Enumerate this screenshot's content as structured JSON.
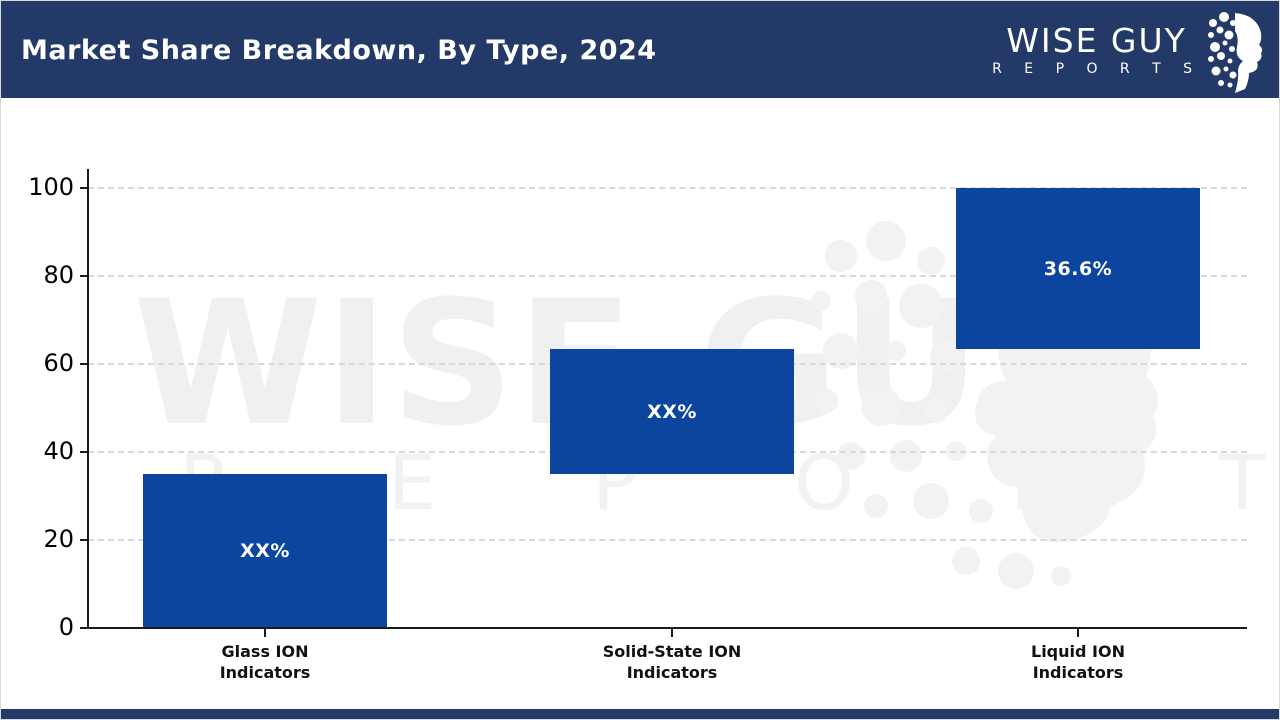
{
  "header": {
    "title": "Market Share Breakdown, By Type, 2024",
    "background_color": "#233a68",
    "logo": {
      "line1": "WISE GUY",
      "line2": "R E P O R T S"
    }
  },
  "watermark": {
    "line1": "WISE GUY",
    "line2": "REPORTS"
  },
  "footer": {
    "background_color": "#233a68"
  },
  "chart_data": {
    "type": "bar",
    "subtype": "stacked-waterfall-percentage",
    "title": "Market Share Breakdown, By Type, 2024",
    "categories": [
      "Glass ION Indicators",
      "Solid-State ION Indicators",
      "Liquid ION Indicators"
    ],
    "category_lines": [
      [
        "Glass ION",
        "Indicators"
      ],
      [
        "Solid-State ION",
        "Indicators"
      ],
      [
        "Liquid ION",
        "Indicators"
      ]
    ],
    "segments": [
      {
        "category": "Glass ION Indicators",
        "start": 0,
        "end": 35,
        "value": 35,
        "label": "XX%"
      },
      {
        "category": "Solid-State ION Indicators",
        "start": 35,
        "end": 63.4,
        "value": 28.4,
        "label": "XX%"
      },
      {
        "category": "Liquid ION Indicators",
        "start": 63.4,
        "end": 100,
        "value": 36.6,
        "label": "36.6%"
      }
    ],
    "ylim": [
      0,
      100
    ],
    "yticks": [
      0,
      20,
      40,
      60,
      80,
      100
    ],
    "xlabel": "",
    "ylabel": "",
    "bar_color": "#0b459d",
    "grid": "horizontal-dashed",
    "gridline_color": "#d8d8d8",
    "legend": "none"
  }
}
